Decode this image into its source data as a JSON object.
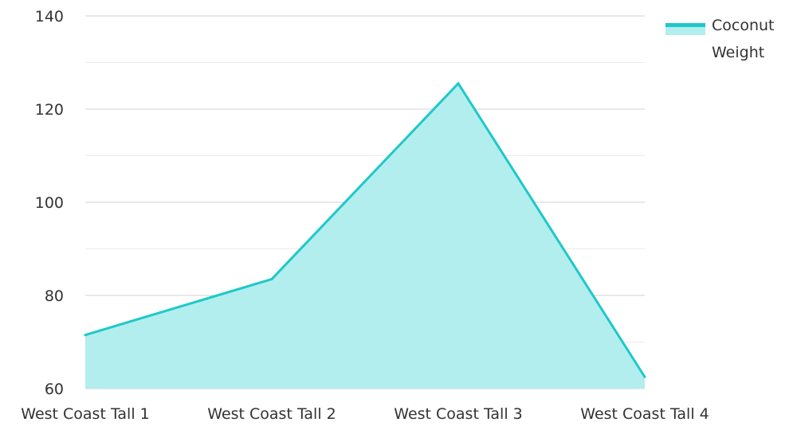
{
  "chart_data": {
    "type": "area",
    "title": "",
    "xlabel": "",
    "ylabel": "",
    "categories": [
      "West Coast Tall 1",
      "West Coast Tall 2",
      "West Coast Tall 3",
      "West Coast Tall 4"
    ],
    "series": [
      {
        "name": "Coconut Weight",
        "values": [
          71.5,
          83.5,
          125.5,
          62.5
        ],
        "color": "#1fc8c8",
        "fill": "#b2eeee"
      }
    ],
    "ylim": [
      60,
      140
    ],
    "y_ticks": [
      60,
      80,
      100,
      120,
      140
    ],
    "grid": true,
    "legend_position": "top-right"
  },
  "legend": {
    "label_line1": "Coconut",
    "label_line2": "Weight"
  }
}
